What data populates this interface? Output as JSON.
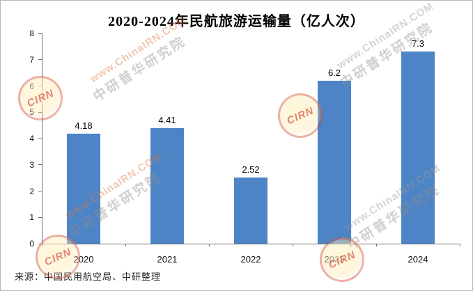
{
  "chart_data": {
    "type": "bar",
    "title": "2020-2024年民航旅游运输量（亿人次）",
    "categories": [
      "2020",
      "2021",
      "2022",
      "2023",
      "2024"
    ],
    "values": [
      4.18,
      4.41,
      2.52,
      6.2,
      7.3
    ],
    "value_labels": [
      "4.18",
      "4.41",
      "2.52",
      "6.2",
      "7.3"
    ],
    "xlabel": "",
    "ylabel": "",
    "ylim": [
      0,
      8
    ],
    "yticks": [
      0,
      1,
      2,
      3,
      4,
      5,
      6,
      7,
      8
    ],
    "grid": false,
    "legend": false,
    "bar_color": "#4d84c6",
    "axis_color": "#6e6e6e"
  },
  "source_note": "来源：中国民用航空局、中研整理",
  "watermark": {
    "line1": "www.ChinaIRN.COM",
    "line2": "中研普华研究院",
    "badge_text": "CIRN",
    "colors": {
      "line1_orange": "#e07a45",
      "line1_gray": "#9a9a9a",
      "line2_gray": "#8f8f8f",
      "badge": "#c62620"
    }
  }
}
